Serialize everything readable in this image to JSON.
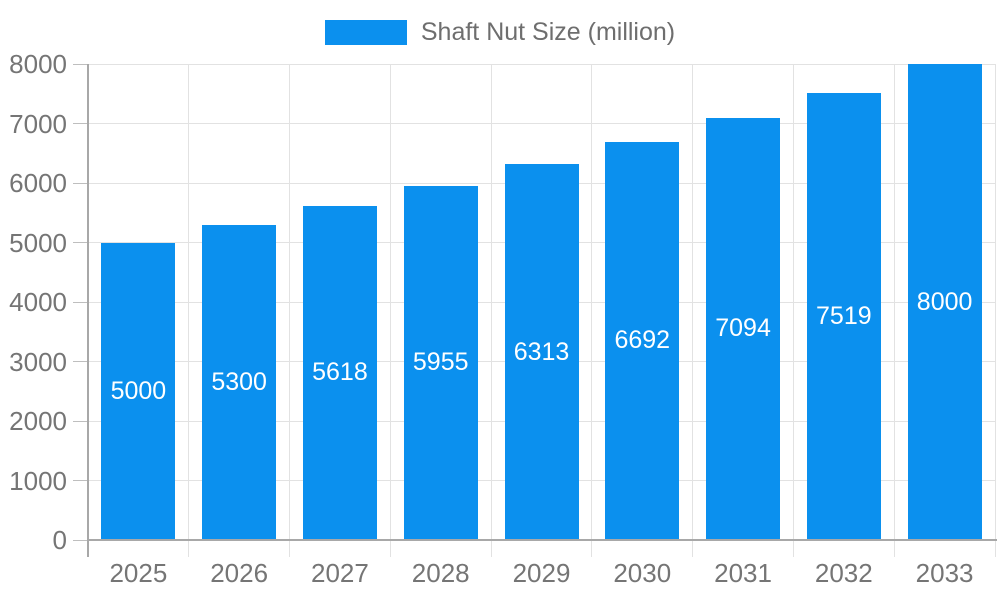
{
  "legend": {
    "label": "Shaft Nut Size (million)"
  },
  "colors": {
    "bar": "#0b90ee",
    "grid": "#e2e2e2",
    "axis": "#a8a8a8",
    "tick_label": "#757575",
    "legend_text": "#6e6e6e",
    "value_label": "#ffffff",
    "background": "#ffffff"
  },
  "chart_data": {
    "type": "bar",
    "title": "",
    "xlabel": "",
    "ylabel": "",
    "series_name": "Shaft Nut Size (million)",
    "categories": [
      "2025",
      "2026",
      "2027",
      "2028",
      "2029",
      "2030",
      "2031",
      "2032",
      "2033"
    ],
    "values": [
      5000,
      5300,
      5618,
      5955,
      6313,
      6692,
      7094,
      7519,
      8000
    ],
    "ylim": [
      0,
      8000
    ],
    "ytick_step": 1000,
    "ytick_labels": [
      "0",
      "1000",
      "2000",
      "3000",
      "4000",
      "5000",
      "6000",
      "7000",
      "8000"
    ],
    "grid": true,
    "legend_position": "top-center",
    "value_labels": "inside-middle-white"
  }
}
